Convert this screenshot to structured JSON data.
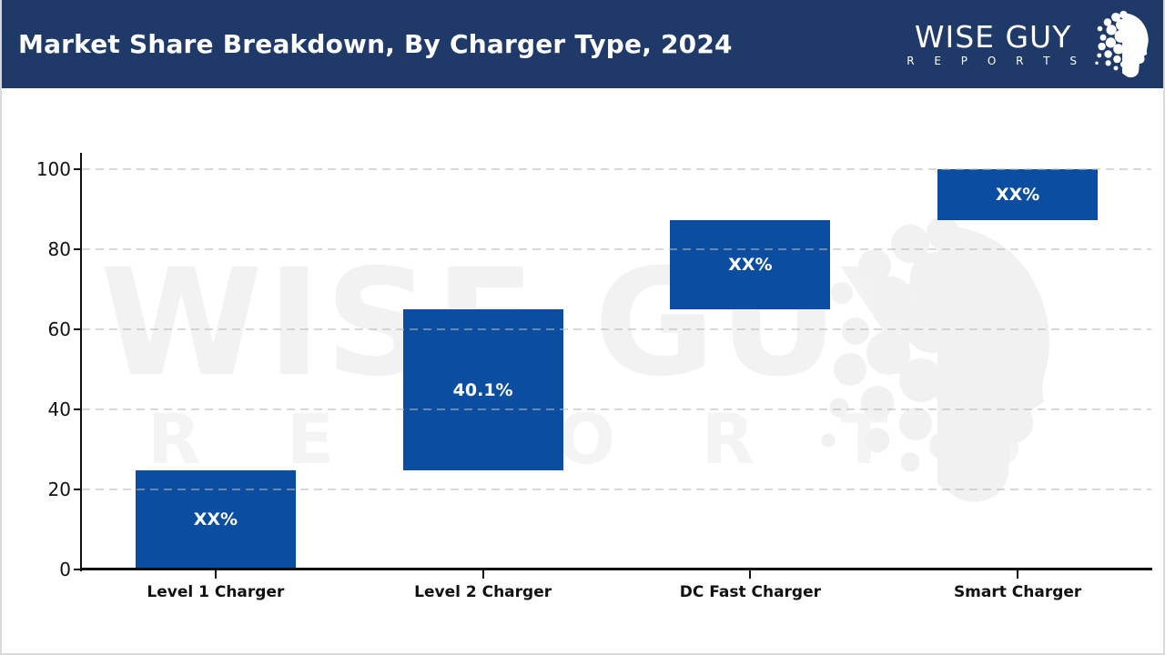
{
  "header": {
    "title": "Market Share Breakdown, By Charger Type, 2024",
    "logo": {
      "line1": "WISE GUY",
      "line2": "R E P O R T S"
    }
  },
  "watermark": {
    "line1": "WISE GUY",
    "line2": "R E P O R T S"
  },
  "colors": {
    "header_bg": "#1f3a68",
    "bar": "#0b4da1",
    "axis": "#111111",
    "gridline": "#dcdcdc",
    "watermark": "#f2f2f2"
  },
  "chart_data": {
    "type": "bar",
    "variant": "floating-waterfall",
    "title": "Market Share Breakdown, By Charger Type, 2024",
    "categories": [
      "Level 1 Charger",
      "Level 2 Charger",
      "DC Fast Charger",
      "Smart Charger"
    ],
    "segments": [
      {
        "category": "Level 1 Charger",
        "start": 0,
        "end": 24.8,
        "label": "XX%"
      },
      {
        "category": "Level 2 Charger",
        "start": 24.8,
        "end": 64.9,
        "label": "40.1%",
        "value": 40.1
      },
      {
        "category": "DC Fast Charger",
        "start": 64.9,
        "end": 87.2,
        "label": "XX%"
      },
      {
        "category": "Smart Charger",
        "start": 87.2,
        "end": 100,
        "label": "XX%"
      }
    ],
    "yticks": [
      0,
      20,
      40,
      60,
      80,
      100
    ],
    "ylim": [
      0,
      105
    ],
    "xlabel": "",
    "ylabel": "",
    "grid": "horizontal-dashed",
    "legend": "none",
    "bar_color": "#0b4da1"
  }
}
